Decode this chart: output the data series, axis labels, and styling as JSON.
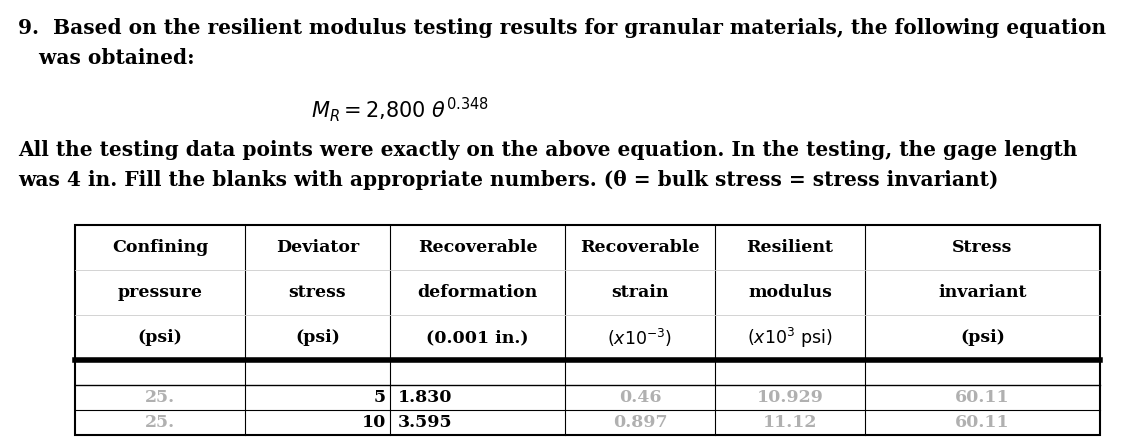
{
  "title_line1": "9.  Based on the resilient modulus testing results for granular materials, the following equation",
  "title_line2": "   was obtained:",
  "body_text_line1": "All the testing data points were exactly on the above equation. In the testing, the gage length",
  "body_text_line2": "was 4 in. Fill the blanks with appropriate numbers. (θ = bulk stress = stress invariant)",
  "col_headers": [
    [
      "Confining",
      "pressure",
      "(psi)"
    ],
    [
      "Deviator",
      "stress",
      "(psi)"
    ],
    [
      "Recoverable",
      "deformation",
      "(0.001 in.)"
    ],
    [
      "Recoverable",
      "strain",
      "SPECIAL_STRAIN"
    ],
    [
      "Resilient",
      "modulus",
      "SPECIAL_MODULUS"
    ],
    [
      "Stress",
      "invariant",
      "(psi)"
    ]
  ],
  "row1_black": [
    "5",
    "1.830"
  ],
  "row2_black": [
    "10",
    "3.595"
  ],
  "row1_gray": [
    "25.",
    "0.46",
    "10.929",
    "60.11"
  ],
  "row2_gray": [
    "25.",
    "0.897",
    "11.12",
    "60.11"
  ],
  "background_color": "#ffffff",
  "text_color": "#000000",
  "gray_color": "#b0b0b0"
}
